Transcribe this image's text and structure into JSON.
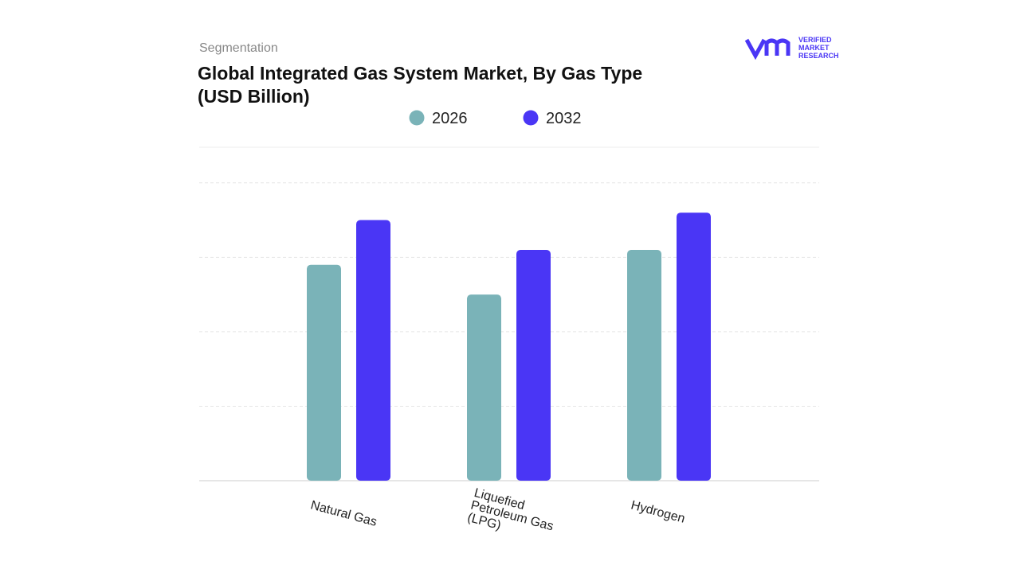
{
  "header": {
    "section": "Segmentation",
    "logo_text": [
      "VERIFIED",
      "MARKET",
      "RESEARCH"
    ]
  },
  "chart_data": {
    "type": "bar",
    "title": "Global Integrated Gas System Market, By Gas Type (USD Billion)",
    "categories": [
      "Natural Gas",
      "Liquefied Petroleum Gas (LPG)",
      "Hydrogen"
    ],
    "series": [
      {
        "name": "2026",
        "color": "#7ab3b8",
        "values": [
          2.9,
          2.5,
          3.1
        ]
      },
      {
        "name": "2032",
        "color": "#4a36f5",
        "values": [
          3.5,
          3.1,
          3.6
        ]
      }
    ],
    "ylim": [
      0,
      4.5
    ],
    "yticks": [
      1,
      2,
      3,
      4
    ],
    "grid": true
  }
}
